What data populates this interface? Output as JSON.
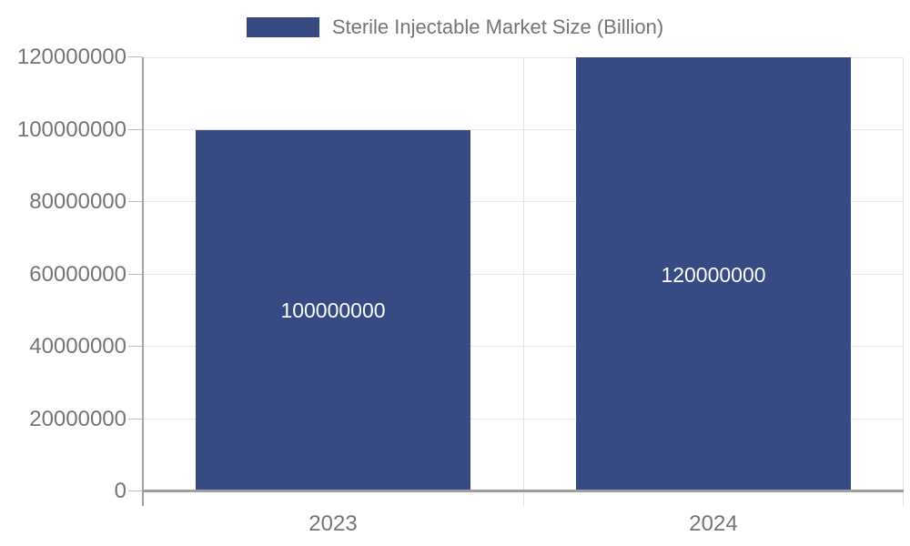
{
  "legend": {
    "label": "Sterile Injectable Market Size (Billion)"
  },
  "colors": {
    "bar": "#374a83",
    "grid": "#e6e6e6",
    "boundary": "#e3e3e3",
    "axis": "#a3a3a3",
    "baseline": "#9e9e9e",
    "tick": "#bdbdbd",
    "text": "#757575",
    "bar_label": "#fafafa",
    "background": "#ffffff"
  },
  "chart_data": {
    "type": "bar",
    "title": "",
    "categories": [
      "2023",
      "2024"
    ],
    "series": [
      {
        "name": "Sterile Injectable Market Size (Billion)",
        "values": [
          100000000,
          120000000
        ]
      }
    ],
    "bar_value_labels": [
      "100000000",
      "120000000"
    ],
    "ytick_values": [
      0,
      20000000,
      40000000,
      60000000,
      80000000,
      100000000,
      120000000
    ],
    "ytick_labels": [
      "0",
      "20000000",
      "40000000",
      "60000000",
      "80000000",
      "100000000",
      "120000000"
    ],
    "ylim": [
      0,
      120000000
    ],
    "xlabel": "",
    "ylabel": "",
    "grid": true,
    "legend_position": "top-center"
  }
}
